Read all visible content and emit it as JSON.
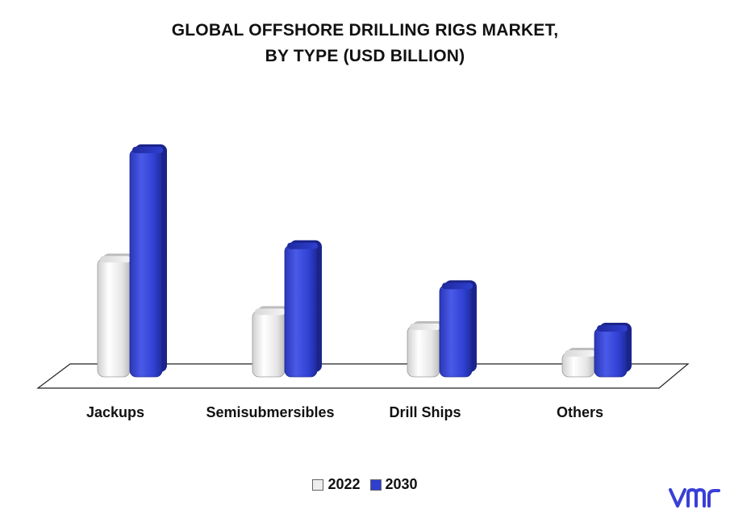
{
  "chart_data": {
    "type": "bar",
    "title_lines": [
      "GLOBAL OFFSHORE DRILLING RIGS MARKET,",
      "BY TYPE (USD BILLION)"
    ],
    "categories": [
      "Jackups",
      "Semisubmersibles",
      "Drill Ships",
      "Others"
    ],
    "series": [
      {
        "name": "2022",
        "values": [
          14.2,
          7.9,
          6.1,
          2.9
        ],
        "color": "#eeeeee"
      },
      {
        "name": "2030",
        "values": [
          27.3,
          15.8,
          11.0,
          5.9
        ],
        "color": "#2f3fd0"
      }
    ],
    "xlabel": "",
    "ylabel": "",
    "ylim": [
      0,
      30
    ],
    "grid": false,
    "legend_position": "bottom"
  },
  "logo": {
    "name": "vmr-logo",
    "color": "#3a3fd6"
  }
}
